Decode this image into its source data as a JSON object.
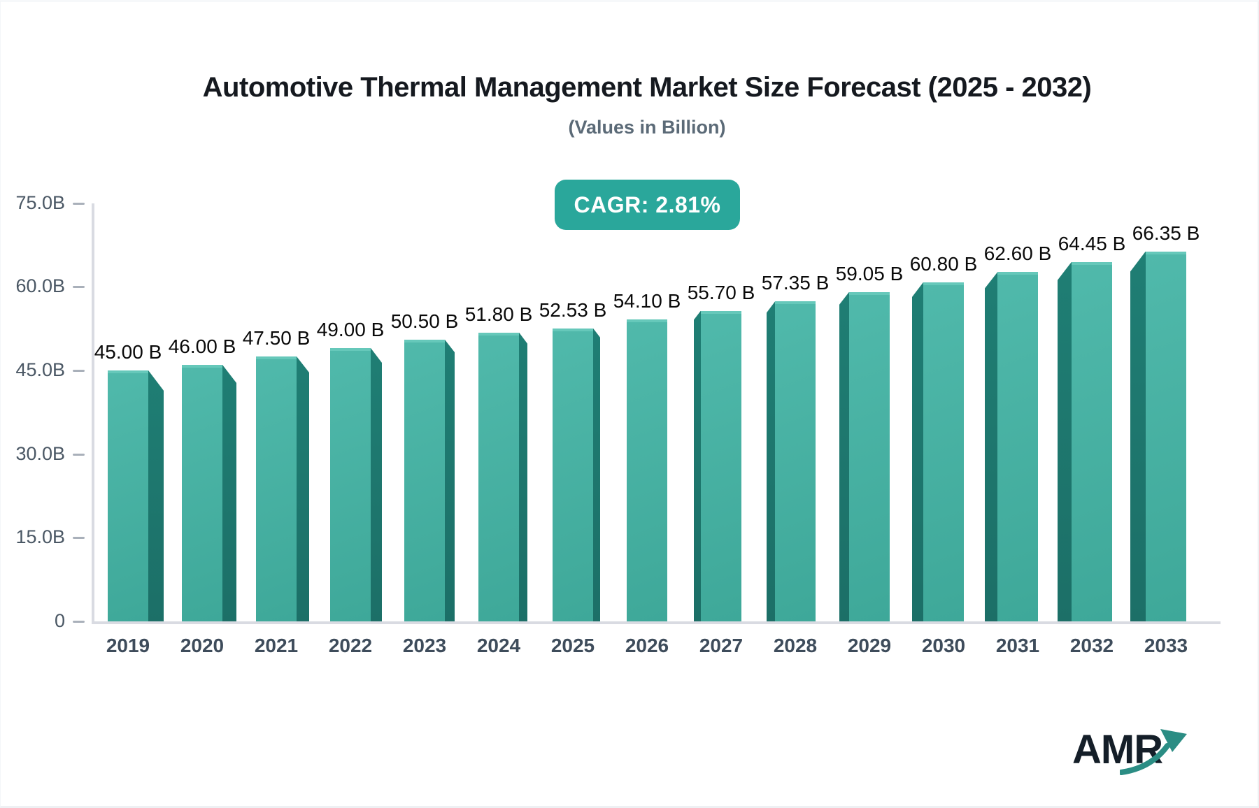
{
  "chart": {
    "title": "Automotive Thermal Management Market Size Forecast (2025 - 2032)",
    "subtitle": "(Values in Billion)",
    "cagr_label": "CAGR: 2.81%"
  },
  "chart_data": {
    "type": "bar",
    "title": "Automotive Thermal Management Market Size Forecast (2025 - 2032)",
    "subtitle": "(Values in Billion)",
    "cagr": "2.81%",
    "categories": [
      "2019",
      "2020",
      "2021",
      "2022",
      "2023",
      "2024",
      "2025",
      "2026",
      "2027",
      "2028",
      "2029",
      "2030",
      "2031",
      "2032",
      "2033"
    ],
    "values": [
      45.0,
      46.0,
      47.5,
      49.0,
      50.5,
      51.8,
      52.53,
      54.1,
      55.7,
      57.35,
      59.05,
      60.8,
      62.6,
      64.45,
      66.35
    ],
    "value_labels": [
      "45.00 B",
      "46.00 B",
      "47.50 B",
      "49.00 B",
      "50.50 B",
      "51.80 B",
      "52.53 B",
      "54.10 B",
      "55.70 B",
      "57.35 B",
      "59.05 B",
      "60.80 B",
      "62.60 B",
      "64.45 B",
      "66.35 B"
    ],
    "xlabel": "",
    "ylabel": "",
    "ylim": [
      0,
      75
    ],
    "yticks": [
      {
        "value": 0,
        "label": "0"
      },
      {
        "value": 15,
        "label": "15.0B"
      },
      {
        "value": 30,
        "label": "30.0B"
      },
      {
        "value": 45,
        "label": "45.0B"
      },
      {
        "value": 60,
        "label": "60.0B"
      },
      {
        "value": 75,
        "label": "75.0B"
      }
    ],
    "grid": false,
    "legend": false,
    "bar_style": "3d-perspective-teal"
  },
  "colors": {
    "badge_bg": "#2aa79b",
    "badge_text": "#ffffff",
    "bar_face_top": "#50b9ab",
    "bar_face_bottom": "#3ea899",
    "bar_top_edge": "#66c8ba",
    "bar_side": "#1f7e74",
    "bar_side_dark": "#1c6f67",
    "axis_line": "#d9dbe2",
    "tick_dash": "#a9b0ba",
    "ytick_text": "#4a5764",
    "xtick_text": "#3e4c5b",
    "value_text": "#0a0a0a",
    "title_text": "#15191f",
    "subtitle_text": "#5b6a77",
    "logo_text": "#141e28",
    "logo_arrow": "#2b8d84"
  },
  "logo": {
    "text": "AMR"
  }
}
